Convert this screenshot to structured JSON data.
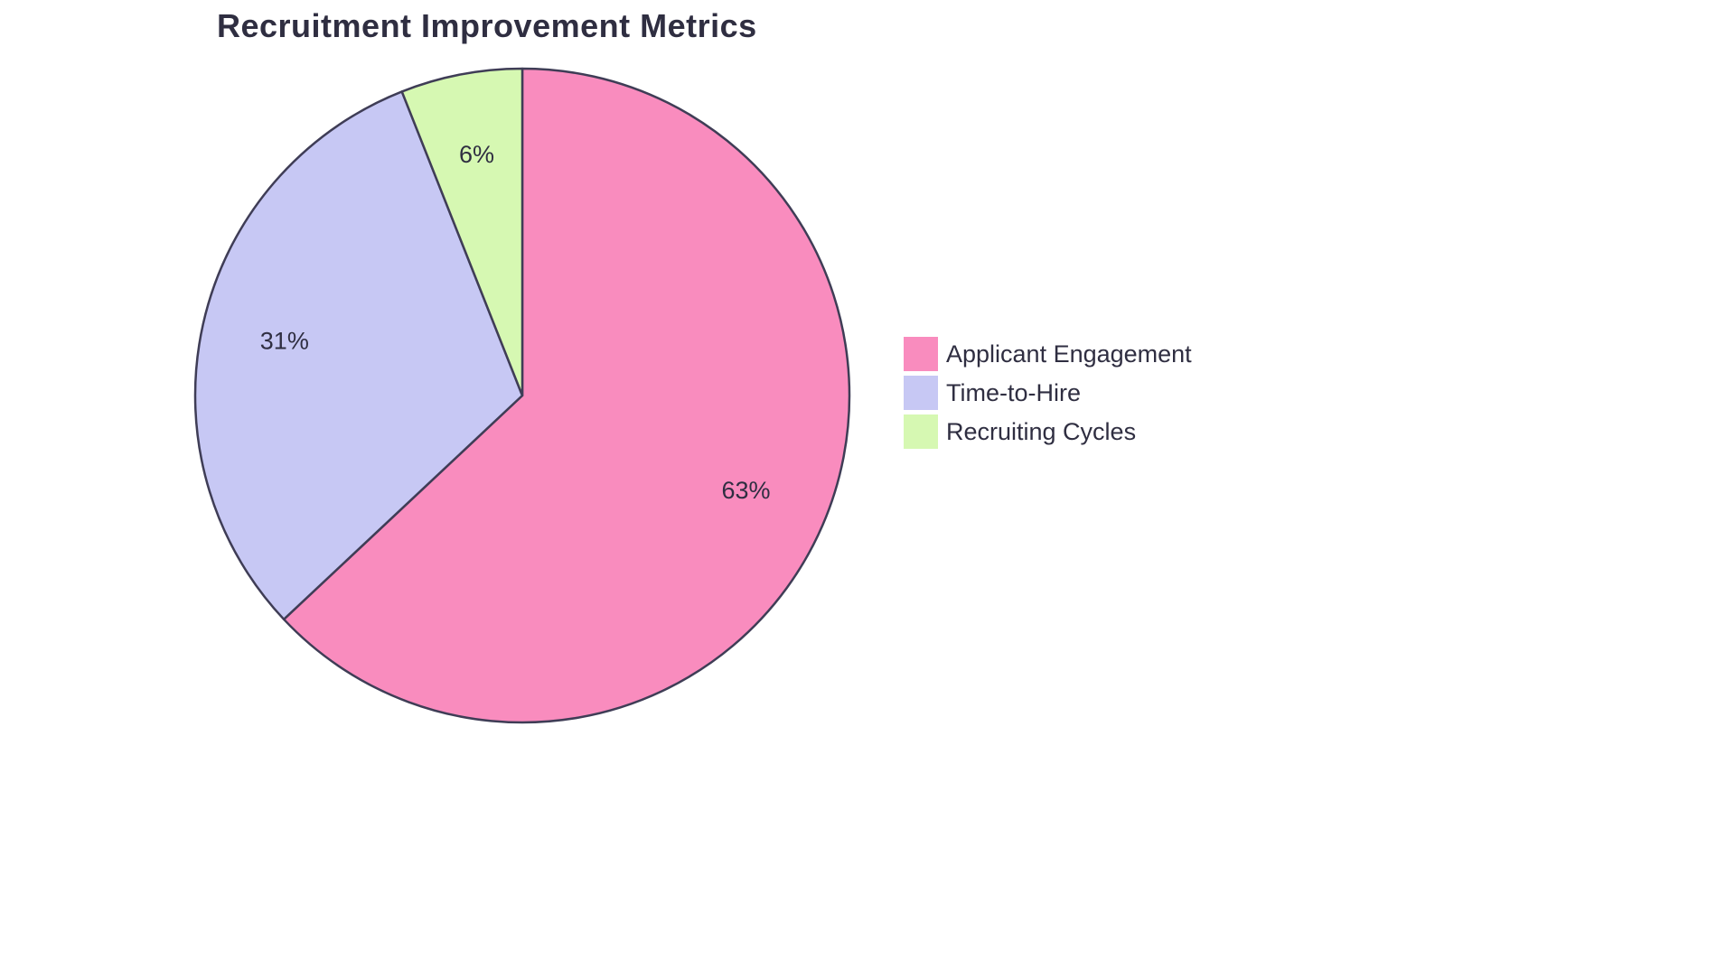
{
  "page": {
    "background": "#ffffff"
  },
  "chart_data": {
    "type": "pie",
    "title": "Recruitment Improvement Metrics",
    "labels": [
      "Applicant Engagement",
      "Time-to-Hire",
      "Recruiting Cycles"
    ],
    "values": [
      63,
      31,
      6
    ],
    "value_labels": [
      "63%",
      "31%",
      "6%"
    ],
    "colors": [
      "#F98CBE",
      "#C7C8F4",
      "#D6F8B2"
    ],
    "border_color": "#3F3D56",
    "label_color": "#2F2E41",
    "legend_position": "right",
    "start_angle_deg": 0,
    "direction": "clockwise"
  }
}
